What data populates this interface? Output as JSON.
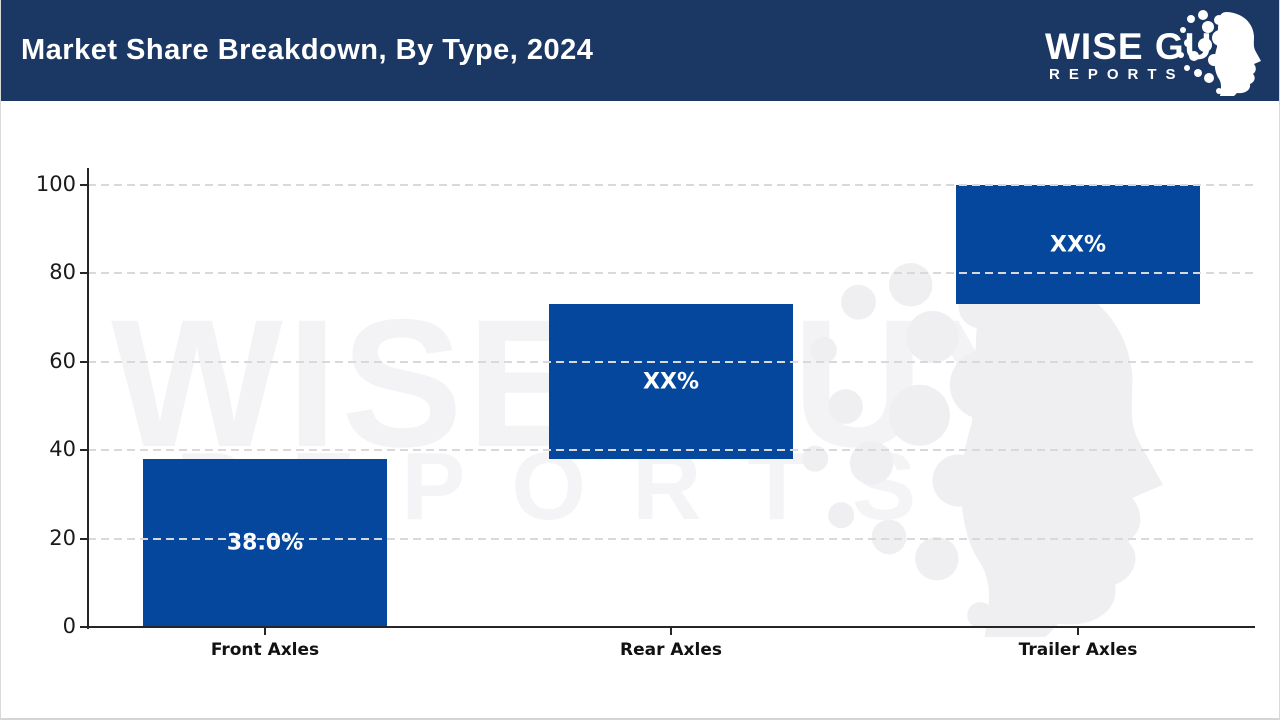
{
  "header": {
    "title": "Market Share Breakdown, By Type, 2024",
    "logo_line1": "WISE GUY",
    "logo_line2": "REPORTS"
  },
  "watermark": {
    "line1": "WISE GUY",
    "line2": "REPORTS"
  },
  "chart_data": {
    "type": "bar",
    "variant": "waterfall",
    "title": "Market Share Breakdown, By Type, 2024",
    "categories": [
      "Front Axles",
      "Rear Axles",
      "Trailer Axles"
    ],
    "series": [
      {
        "name": "Market Share",
        "segments": [
          {
            "start": 0,
            "end": 38
          },
          {
            "start": 38,
            "end": 73
          },
          {
            "start": 73,
            "end": 100
          }
        ],
        "values": [
          38,
          35,
          27
        ]
      }
    ],
    "bar_labels": [
      "38.0%",
      "XX%",
      "XX%"
    ],
    "xlabel": "",
    "ylabel": "",
    "ylim": [
      0,
      100
    ],
    "yticks": [
      0,
      20,
      40,
      60,
      80,
      100
    ],
    "grid": "horizontal-dashed",
    "legend": "none",
    "bar_color": "#04479d"
  },
  "colors": {
    "header_bg": "#1b3764",
    "bar": "#04479d",
    "axis": "#262626",
    "gridline": "#d9d9d9",
    "watermark": "#f3f3f6",
    "background": "#ffffff"
  }
}
